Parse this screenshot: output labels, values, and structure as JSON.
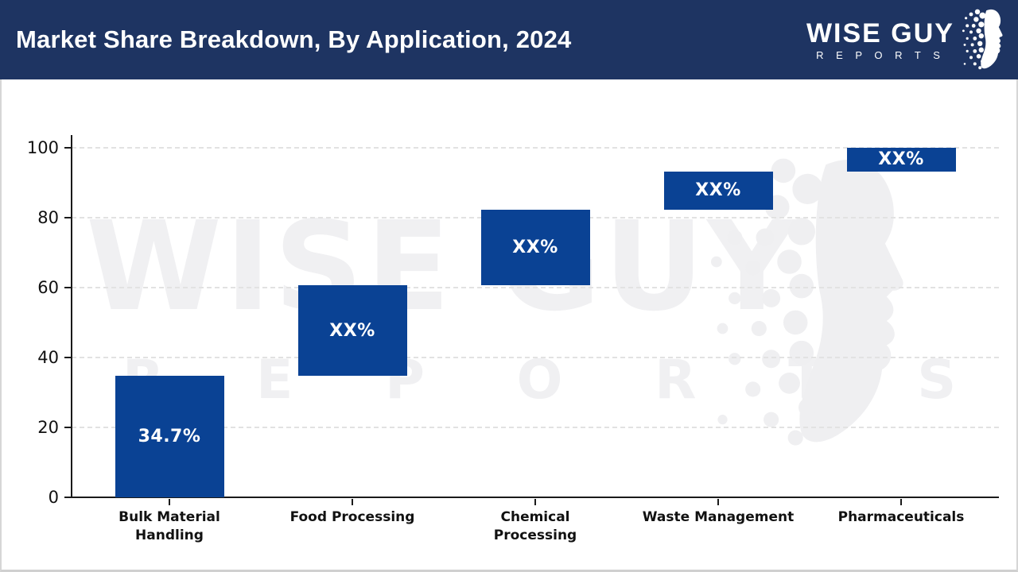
{
  "header": {
    "title": "Market Share Breakdown, By Application, 2024",
    "logo": {
      "line1": "WISE GUY",
      "line2": "R E P O R T S",
      "icon": "dotted-face-profile"
    }
  },
  "watermark": {
    "line1": "WISE GUY",
    "line2": "R E P O R T S",
    "icon": "dotted-face-profile"
  },
  "chart_data": {
    "type": "bar",
    "subtype": "waterfall",
    "title": "Market Share Breakdown, By Application, 2024",
    "categories": [
      "Bulk Material Handling",
      "Food Processing",
      "Chemical Processing",
      "Waste Management",
      "Pharmaceuticals"
    ],
    "category_display": [
      "Bulk Material\nHandling",
      "Food Processing",
      "Chemical\nProcessing",
      "Waste Management",
      "Pharmaceuticals"
    ],
    "series": [
      {
        "name": "Market share (cumulative %)",
        "segments": [
          {
            "category": "Bulk Material Handling",
            "start": 0,
            "end": 34.7,
            "label": "34.7%"
          },
          {
            "category": "Food Processing",
            "start": 34.7,
            "end": 60.7,
            "label": "XX%"
          },
          {
            "category": "Chemical Processing",
            "start": 60.7,
            "end": 82.3,
            "label": "XX%"
          },
          {
            "category": "Waste Management",
            "start": 82.3,
            "end": 93.2,
            "label": "XX%"
          },
          {
            "category": "Pharmaceuticals",
            "start": 93.2,
            "end": 100,
            "label": "XX%"
          }
        ]
      }
    ],
    "xlabel": "",
    "ylabel": "",
    "ylim": [
      0,
      104
    ],
    "yticks": [
      0,
      20,
      40,
      60,
      80,
      100
    ],
    "grid": "horizontal-dashed",
    "legend": "none",
    "colors": {
      "bar": "#0a4294",
      "bar_label": "#ffffff",
      "axis": "#1a1a1a",
      "grid": "#e2e2e2",
      "header_bg": "#1e3462",
      "header_text": "#ffffff",
      "watermark": "#f0f0f2"
    }
  }
}
